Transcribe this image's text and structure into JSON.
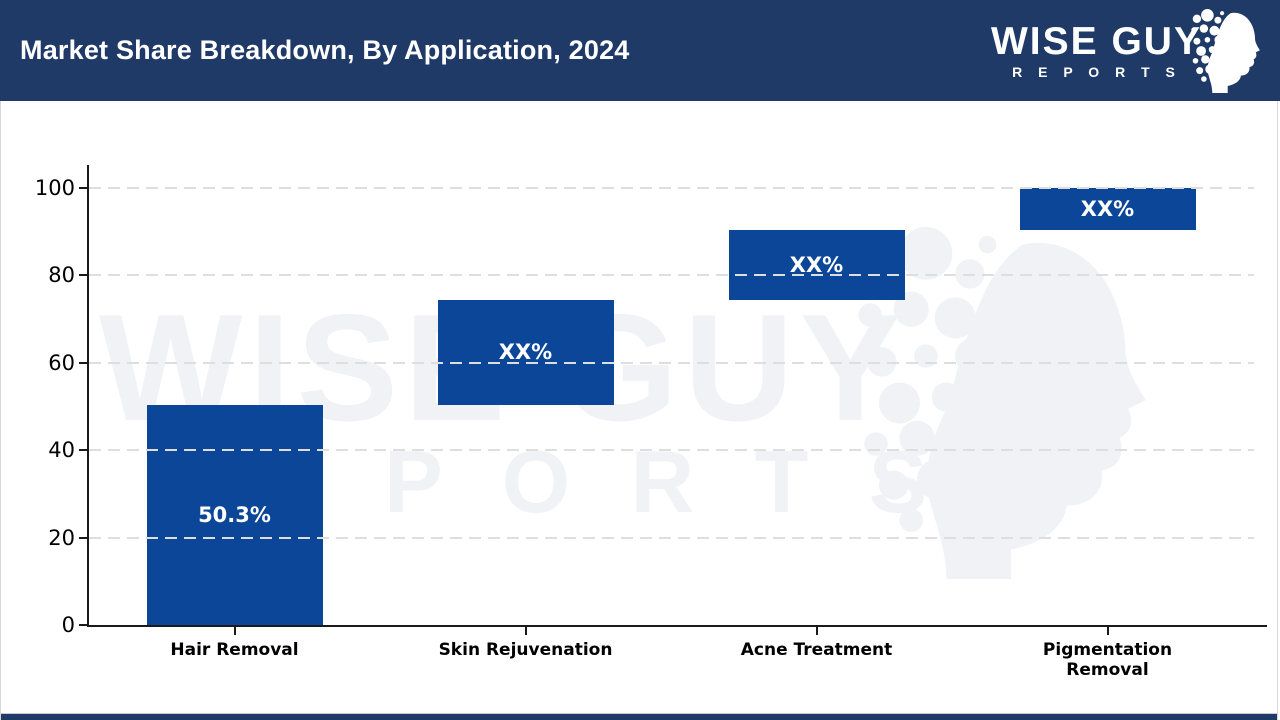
{
  "header": {
    "title": "Market Share Breakdown, By Application, 2024",
    "logo": {
      "wordmark": "WISE GUY",
      "sub": "R E P O R T S"
    }
  },
  "watermark": {
    "line1": "WISE GUY",
    "line2": "R E P O R T S"
  },
  "chart_data": {
    "type": "bar",
    "subtype": "waterfall",
    "title": "Market Share Breakdown, By Application, 2024",
    "categories": [
      "Hair Removal",
      "Skin Rejuvenation",
      "Acne Treatment",
      "Pigmentation Removal"
    ],
    "segments": [
      {
        "category": "Hair Removal",
        "start": 0,
        "end": 50.3,
        "label": "50.3%"
      },
      {
        "category": "Skin Rejuvenation",
        "start": 50.3,
        "end": 74.3,
        "label": "XX%"
      },
      {
        "category": "Acne Treatment",
        "start": 74.3,
        "end": 90.2,
        "label": "XX%"
      },
      {
        "category": "Pigmentation Removal",
        "start": 90.2,
        "end": 100,
        "label": "XX%"
      }
    ],
    "yticks": [
      0,
      20,
      40,
      60,
      80,
      100
    ],
    "ylim": [
      0,
      100
    ],
    "xlabel": "",
    "ylabel": "",
    "grid": "dashed-horizontal-over-bars",
    "legend": "none"
  },
  "colors": {
    "header_bg": "#203a68",
    "bar": "#0b4699",
    "bar_label": "#ffffff",
    "gridline": "#dedede",
    "axis": "#1a1a1a",
    "watermark": "#f1f2f5",
    "chart_bg": "#ffffff"
  }
}
